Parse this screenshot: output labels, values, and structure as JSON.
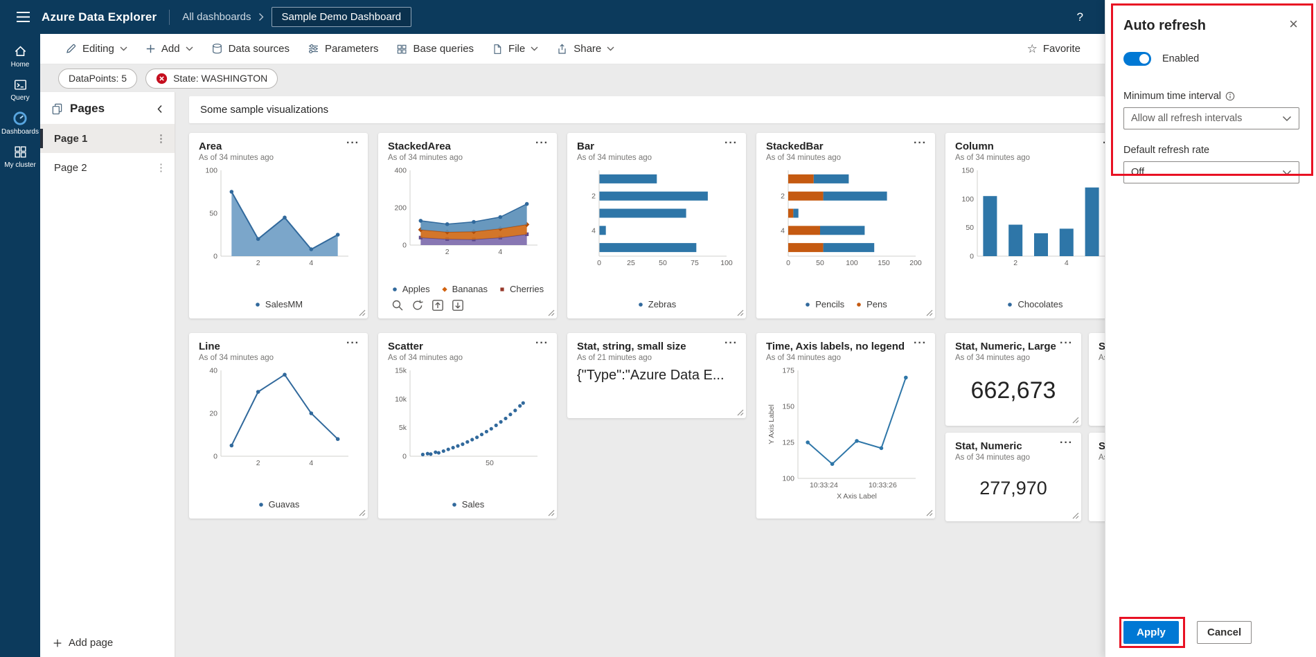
{
  "icons": {
    "more": "···",
    "kebab": "⋮",
    "star": "☆",
    "help": "?",
    "close": "×"
  },
  "header": {
    "app_title": "Azure Data Explorer",
    "breadcrumb": "All dashboards",
    "dashboard_name": "Sample Demo Dashboard"
  },
  "nav_rail": {
    "items": [
      {
        "label": "Home"
      },
      {
        "label": "Query"
      },
      {
        "label": "Dashboards"
      },
      {
        "label": "My cluster"
      }
    ],
    "active": "Dashboards"
  },
  "toolbar": {
    "editing_label": "Editing",
    "add_label": "Add",
    "data_sources_label": "Data sources",
    "parameters_label": "Parameters",
    "base_queries_label": "Base queries",
    "file_label": "File",
    "share_label": "Share",
    "favorite_label": "Favorite"
  },
  "filters": {
    "pill_datapoints": "DataPoints: 5",
    "pill_state": "State: WASHINGTON"
  },
  "pages": {
    "title": "Pages",
    "items": [
      {
        "label": "Page 1",
        "selected": true
      },
      {
        "label": "Page 2",
        "selected": false
      }
    ],
    "add_label": "Add page"
  },
  "canvas": {
    "section_title": "Some sample visualizations"
  },
  "auto_refresh": {
    "title": "Auto refresh",
    "enabled_label": "Enabled",
    "toggle_on": true,
    "min_interval_label": "Minimum time interval",
    "min_interval_value": "Allow all refresh intervals",
    "default_rate_label": "Default refresh rate",
    "default_rate_value": "Off",
    "apply_label": "Apply",
    "cancel_label": "Cancel"
  },
  "colors": {
    "accent": "#0078d4",
    "header_navy": "#0c3a5c",
    "chart_blue": "#31699c",
    "chart_blue_fill": "#6d9cc4",
    "chart_bar": "#2e76a8",
    "chart_orange": "#c55a11",
    "annotation_red": "#e81123"
  },
  "chart_data": [
    {
      "id": "area",
      "type": "area",
      "title": "Area",
      "subtitle": "As of 34 minutes ago",
      "x": [
        1,
        2,
        3,
        4,
        5
      ],
      "values": [
        75,
        20,
        45,
        8,
        25
      ],
      "ylim": [
        0,
        100
      ],
      "yticks": [
        0,
        50,
        100
      ],
      "xticks": [
        2,
        4
      ],
      "line_color": "#31699c",
      "fill_color": "#6d9cc4",
      "legend": [
        {
          "label": "SalesMM",
          "color": "#31699c",
          "marker": "circle"
        }
      ]
    },
    {
      "id": "stackedarea",
      "type": "stackedarea",
      "title": "StackedArea",
      "subtitle": "As of 34 minutes ago",
      "x": [
        1,
        2,
        3,
        4,
        5
      ],
      "ylim": [
        0,
        400
      ],
      "yticks": [
        0,
        200,
        400
      ],
      "xticks": [
        2,
        4
      ],
      "series": [
        {
          "name": "Cherries",
          "values": [
            40,
            32,
            30,
            40,
            58
          ],
          "color": "#7e6bad",
          "marker": "square",
          "marker_color": "#5f4b8b"
        },
        {
          "name": "Bananas",
          "values": [
            42,
            38,
            42,
            48,
            52
          ],
          "color": "#cf6a18",
          "marker": "diamond",
          "marker_color": "#b24d07"
        },
        {
          "name": "Apples",
          "values": [
            48,
            42,
            52,
            62,
            110
          ],
          "color": "#5b8fb9",
          "marker": "circle",
          "marker_color": "#31699c"
        }
      ],
      "legend": [
        {
          "label": "Apples",
          "color": "#31699c",
          "marker": "circle"
        },
        {
          "label": "Bananas",
          "color": "#d1620f",
          "marker": "diamond"
        },
        {
          "label": "Cherries",
          "color": "#97382a",
          "marker": "square"
        }
      ],
      "tools": [
        "search",
        "refresh",
        "move-up",
        "move-down"
      ]
    },
    {
      "id": "bar",
      "type": "hbar",
      "title": "Bar",
      "subtitle": "As of 34 minutes ago",
      "categories": [
        1,
        2,
        3,
        4,
        5
      ],
      "values": [
        45,
        85,
        68,
        5,
        76
      ],
      "xlim": [
        0,
        100
      ],
      "xticks": [
        0,
        25,
        50,
        75,
        100
      ],
      "yticks": [
        2,
        4
      ],
      "bar_color": "#2e76a8",
      "legend": [
        {
          "label": "Zebras",
          "color": "#31699c",
          "marker": "circle"
        }
      ]
    },
    {
      "id": "stackedbar",
      "type": "hbar_stacked",
      "title": "StackedBar",
      "subtitle": "As of 34 minutes ago",
      "categories": [
        1,
        2,
        3,
        4,
        5
      ],
      "xlim": [
        0,
        200
      ],
      "xticks": [
        0,
        50,
        100,
        150,
        200
      ],
      "yticks": [
        2,
        4
      ],
      "series": [
        {
          "name": "Pens",
          "values": [
            40,
            55,
            8,
            50,
            55
          ],
          "color": "#c55a11"
        },
        {
          "name": "Pencils",
          "values": [
            55,
            100,
            8,
            70,
            80
          ],
          "color": "#2e76a8"
        }
      ],
      "legend": [
        {
          "label": "Pencils",
          "color": "#31699c",
          "marker": "circle"
        },
        {
          "label": "Pens",
          "color": "#c55a11",
          "marker": "circle"
        }
      ]
    },
    {
      "id": "column",
      "type": "column",
      "title": "Column",
      "subtitle": "As of 34 minutes ago",
      "categories": [
        1,
        2,
        3,
        4,
        5
      ],
      "values": [
        105,
        55,
        40,
        48,
        120
      ],
      "ylim": [
        0,
        150
      ],
      "yticks": [
        0,
        50,
        100,
        150
      ],
      "xticks": [
        2,
        4
      ],
      "bar_color": "#2e76a8",
      "legend": [
        {
          "label": "Chocolates",
          "color": "#31699c",
          "marker": "circle"
        }
      ]
    },
    {
      "id": "line",
      "type": "line",
      "title": "Line",
      "subtitle": "As of 34 minutes ago",
      "x": [
        1,
        2,
        3,
        4,
        5
      ],
      "values": [
        5,
        30,
        38,
        20,
        8
      ],
      "ylim": [
        0,
        40
      ],
      "yticks": [
        0,
        20,
        40
      ],
      "xticks": [
        2,
        4
      ],
      "line_color": "#31699c",
      "legend": [
        {
          "label": "Guavas",
          "color": "#31699c",
          "marker": "circle"
        }
      ]
    },
    {
      "id": "scatter",
      "type": "scatter",
      "title": "Scatter",
      "subtitle": "As of 34 minutes ago",
      "points": [
        [
          8,
          300
        ],
        [
          11,
          450
        ],
        [
          13,
          380
        ],
        [
          16,
          700
        ],
        [
          18,
          600
        ],
        [
          21,
          900
        ],
        [
          24,
          1200
        ],
        [
          27,
          1500
        ],
        [
          30,
          1800
        ],
        [
          33,
          2100
        ],
        [
          36,
          2500
        ],
        [
          39,
          2900
        ],
        [
          42,
          3300
        ],
        [
          45,
          3800
        ],
        [
          48,
          4300
        ],
        [
          51,
          4800
        ],
        [
          54,
          5400
        ],
        [
          57,
          6000
        ],
        [
          60,
          6600
        ],
        [
          63,
          7300
        ],
        [
          66,
          8000
        ],
        [
          69,
          8800
        ],
        [
          71,
          9300
        ]
      ],
      "xlim": [
        0,
        80
      ],
      "ylim": [
        0,
        15000
      ],
      "yticks": [
        "0",
        "5k",
        "10k",
        "15k"
      ],
      "ytick_vals": [
        0,
        5000,
        10000,
        15000
      ],
      "xticks": [
        50
      ],
      "dot_color": "#31699c",
      "legend": [
        {
          "label": "Sales",
          "color": "#31699c",
          "marker": "circle"
        }
      ]
    },
    {
      "id": "stat-string",
      "type": "stat",
      "value_size": "small-string",
      "title": "Stat, string, small size",
      "subtitle": "As of 21 minutes ago",
      "value": "{\"Type\":\"Azure Data E..."
    },
    {
      "id": "time",
      "type": "line",
      "title": "Time, Axis labels, no legend",
      "subtitle": "As of 34 minutes ago",
      "x": [
        0,
        1,
        2,
        3,
        4
      ],
      "values": [
        125,
        110,
        126,
        121,
        170
      ],
      "ylim": [
        100,
        175
      ],
      "yticks": [
        100,
        125,
        150,
        175
      ],
      "xtick_labels": [
        {
          "label": "10:33:24",
          "pos": 0.22
        },
        {
          "label": "10:33:26",
          "pos": 0.72
        }
      ],
      "ylabel": "Y Axis Label",
      "xlabel": "X Axis Label",
      "line_color": "#2e76a8",
      "legend": []
    },
    {
      "id": "stat-large",
      "type": "stat",
      "value_size": "large",
      "title": "Stat, Numeric, Large",
      "subtitle": "As of 34 minutes ago",
      "value": "662,673"
    },
    {
      "id": "stat",
      "type": "stat",
      "value_size": "medium",
      "title": "Stat, Numeric",
      "subtitle": "As of 34 minutes ago",
      "value": "277,970"
    },
    {
      "id": "partial-1",
      "type": "partial",
      "title": "St",
      "subtitle": "As"
    },
    {
      "id": "partial-2",
      "type": "partial",
      "title": "St",
      "subtitle": "As"
    }
  ]
}
